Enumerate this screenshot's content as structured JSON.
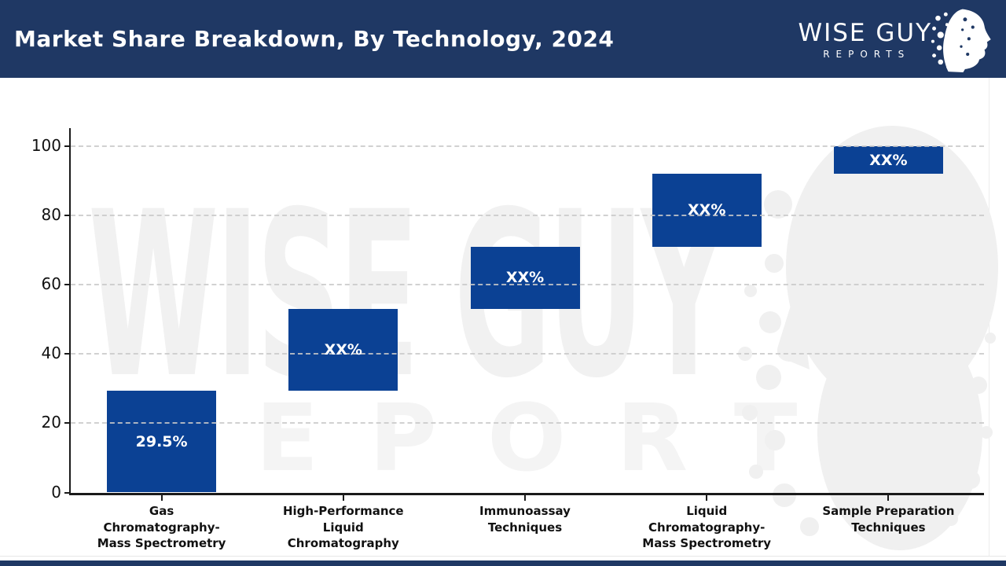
{
  "header": {
    "title": "Market Share Breakdown, By Technology, 2024",
    "logo": {
      "name": "WISE GUY",
      "sub": "REPORTS"
    }
  },
  "watermark": {
    "name": "WISE GUY",
    "sub": "REPORTS"
  },
  "colors": {
    "header_bg": "#1f3864",
    "footer_bg": "#1f3864",
    "bar_fill": "#0b4194",
    "value_label": "#ffffff",
    "axis_text": "#111111",
    "gridline": "#c9c9c9",
    "watermark": "#f1f1f1"
  },
  "chart_data": {
    "type": "bar",
    "subtype": "waterfall",
    "title": "Market Share Breakdown, By Technology, 2024",
    "xlabel": "",
    "ylabel": "",
    "ylim": [
      0,
      105
    ],
    "yticks": [
      0,
      20,
      40,
      60,
      80,
      100
    ],
    "grid": "dashed-horizontal",
    "legend": "none",
    "categories": [
      "Gas\nChromatography-\nMass Spectrometry",
      "High-Performance\nLiquid\nChromatography",
      "Immunoassay\nTechniques",
      "Liquid\nChromatography-\nMass Spectrometry",
      "Sample Preparation\nTechniques"
    ],
    "bars": [
      {
        "category": "Gas Chromatography-Mass Spectrometry",
        "start": 0,
        "end": 29.5,
        "label": "29.5%"
      },
      {
        "category": "High-Performance Liquid Chromatography",
        "start": 29.5,
        "end": 53,
        "label": "XX%"
      },
      {
        "category": "Immunoassay Techniques",
        "start": 53,
        "end": 71,
        "label": "XX%"
      },
      {
        "category": "Liquid Chromatography-Mass Spectrometry",
        "start": 71,
        "end": 92,
        "label": "XX%"
      },
      {
        "category": "Sample Preparation Techniques",
        "start": 92,
        "end": 100,
        "label": "XX%"
      }
    ]
  }
}
